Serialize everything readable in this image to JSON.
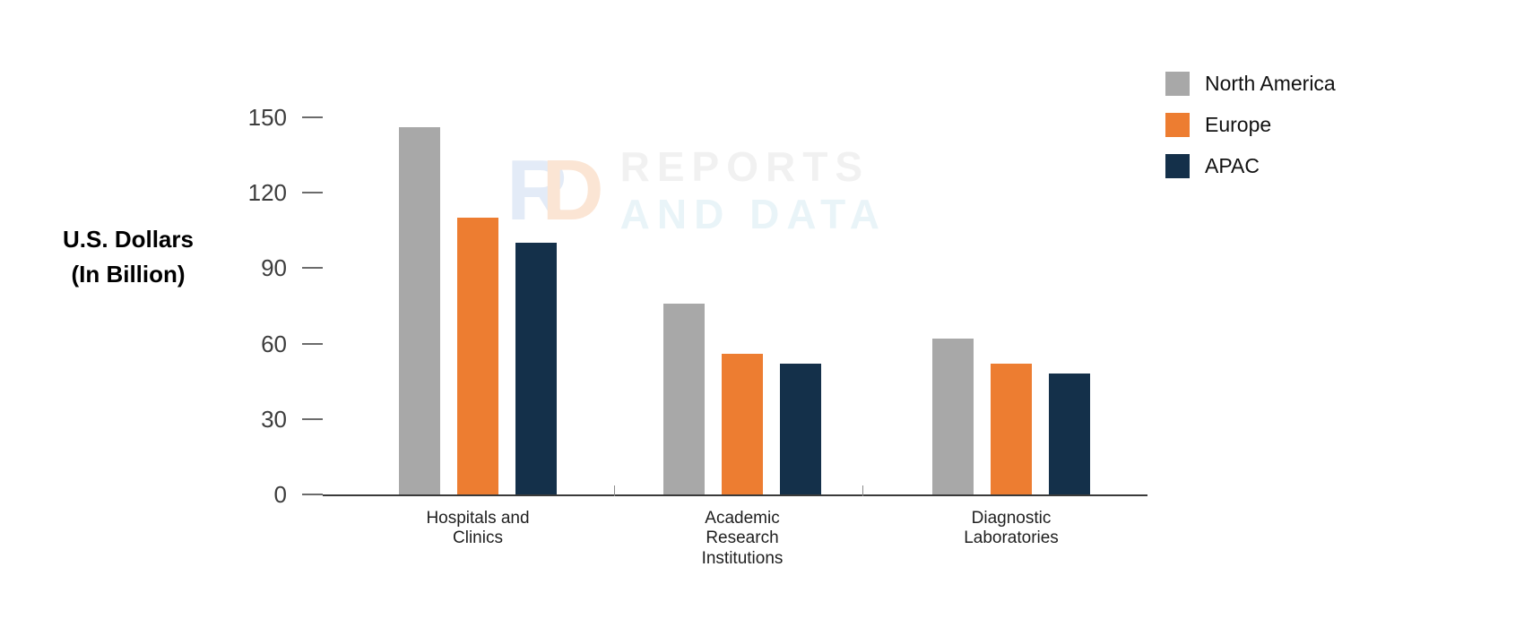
{
  "y_axis_title": "U.S. Dollars\n(In Billion)",
  "watermark": {
    "letter_r": "R",
    "letter_d": "D",
    "line1": "REPORTS",
    "line2": "AND DATA"
  },
  "colors": {
    "axis": "#3a3a3a",
    "tick_text": "#3d3d3d",
    "north_america": "#a8a8a8",
    "europe": "#ed7d31",
    "apac": "#14304a"
  },
  "chart_data": {
    "type": "bar",
    "title": "",
    "xlabel": "",
    "ylabel": "U.S. Dollars (In Billion)",
    "categories": [
      "Hospitals and\nClinics",
      "Academic\nResearch\nInstitutions",
      "Diagnostic\nLaboratories"
    ],
    "series": [
      {
        "name": "North America",
        "color": "#a8a8a8",
        "values": [
          146,
          76,
          62
        ]
      },
      {
        "name": "Europe",
        "color": "#ed7d31",
        "values": [
          110,
          56,
          52
        ]
      },
      {
        "name": "APAC",
        "color": "#14304a",
        "values": [
          100,
          52,
          48
        ]
      }
    ],
    "yticks": [
      0,
      30,
      60,
      90,
      120,
      150
    ],
    "ylim": [
      0,
      150
    ],
    "grid": false,
    "legend_position": "top-right"
  }
}
